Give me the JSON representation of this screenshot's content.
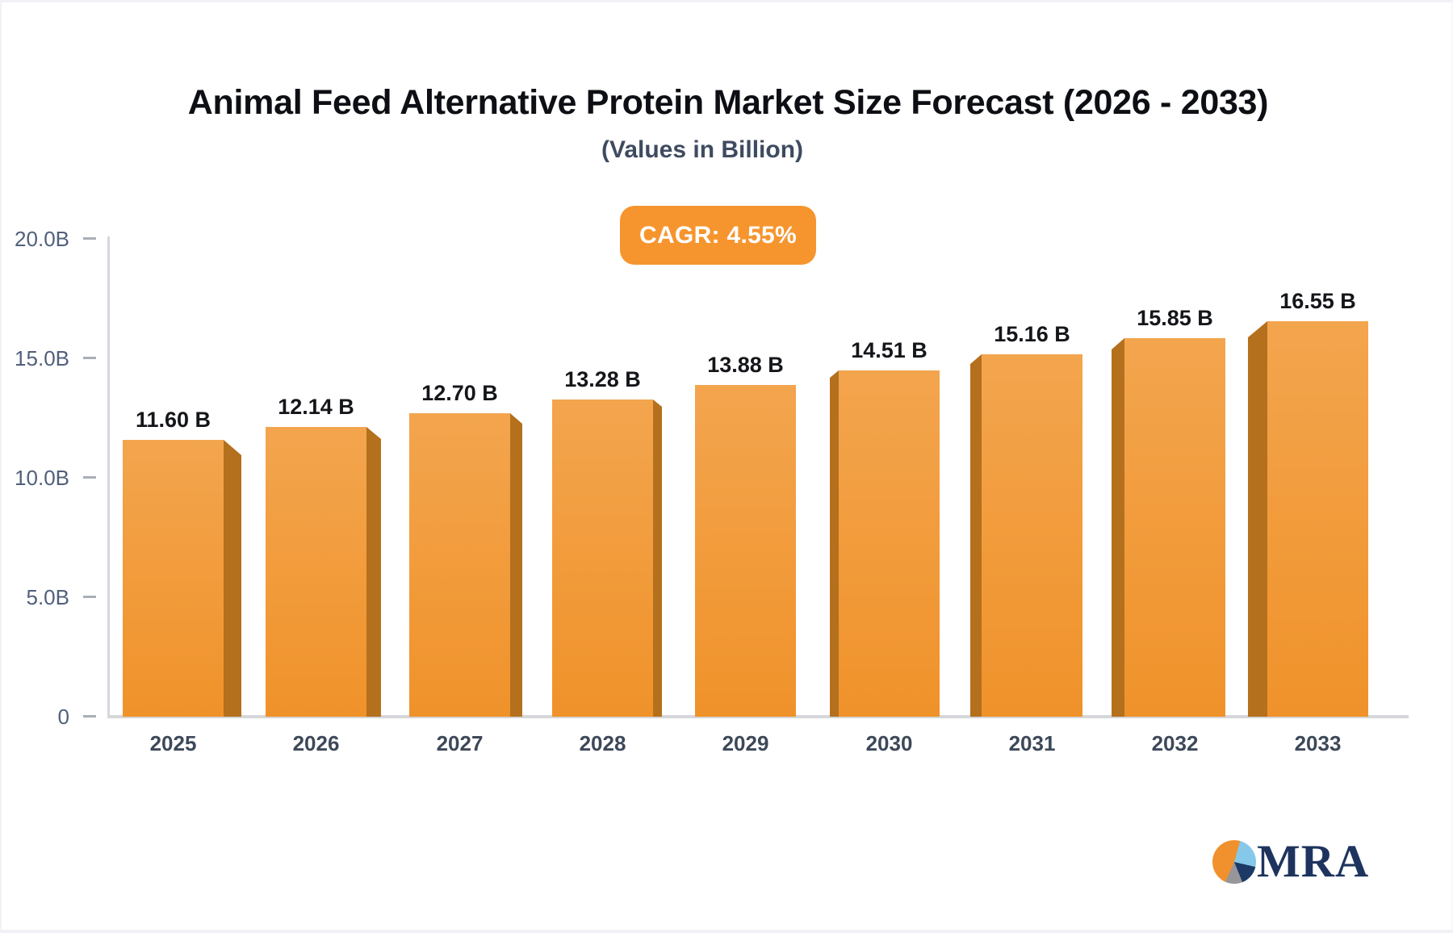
{
  "header": {
    "title": "Animal Feed Alternative Protein Market Size Forecast (2026 - 2033)",
    "subtitle": "(Values in Billion)",
    "cagr_badge": "CAGR: 4.55%"
  },
  "chart_data": {
    "type": "bar",
    "style": "3d-perspective-bars",
    "title": "Animal Feed Alternative Protein Market Size Forecast (2026 - 2033)",
    "subtitle": "(Values in Billion)",
    "categories": [
      "2025",
      "2026",
      "2027",
      "2028",
      "2029",
      "2030",
      "2031",
      "2032",
      "2033"
    ],
    "values": [
      11.6,
      12.14,
      12.7,
      13.28,
      13.88,
      14.51,
      15.16,
      15.85,
      16.55
    ],
    "bar_labels": [
      "11.60 B",
      "12.14 B",
      "12.70 B",
      "13.28 B",
      "13.88 B",
      "14.51 B",
      "15.16 B",
      "15.85 B",
      "16.55 B"
    ],
    "cagr": "4.55%",
    "xlabel": "",
    "ylabel": "",
    "ylim": [
      0,
      20
    ],
    "grid": false,
    "legend": "none",
    "yticks": [
      {
        "value": 0,
        "label": "0"
      },
      {
        "value": 5,
        "label": "5.0B"
      },
      {
        "value": 10,
        "label": "10.0B"
      },
      {
        "value": 15,
        "label": "15.0B"
      },
      {
        "value": 20,
        "label": "20.0B"
      }
    ],
    "colors": {
      "bar_face_top": "#f3a54e",
      "bar_face_bottom": "#f0922a",
      "bar_side": "#b4701d",
      "accent_badge": "#f6952e",
      "axis_line": "#d5d7db",
      "label_text": "#14161a",
      "tick_text": "#51607a"
    }
  },
  "logo": {
    "text": "MRA",
    "colors": {
      "orange": "#f0912d",
      "light_blue": "#86c8ea",
      "navy": "#1d3a66",
      "gray": "#96969b"
    }
  }
}
